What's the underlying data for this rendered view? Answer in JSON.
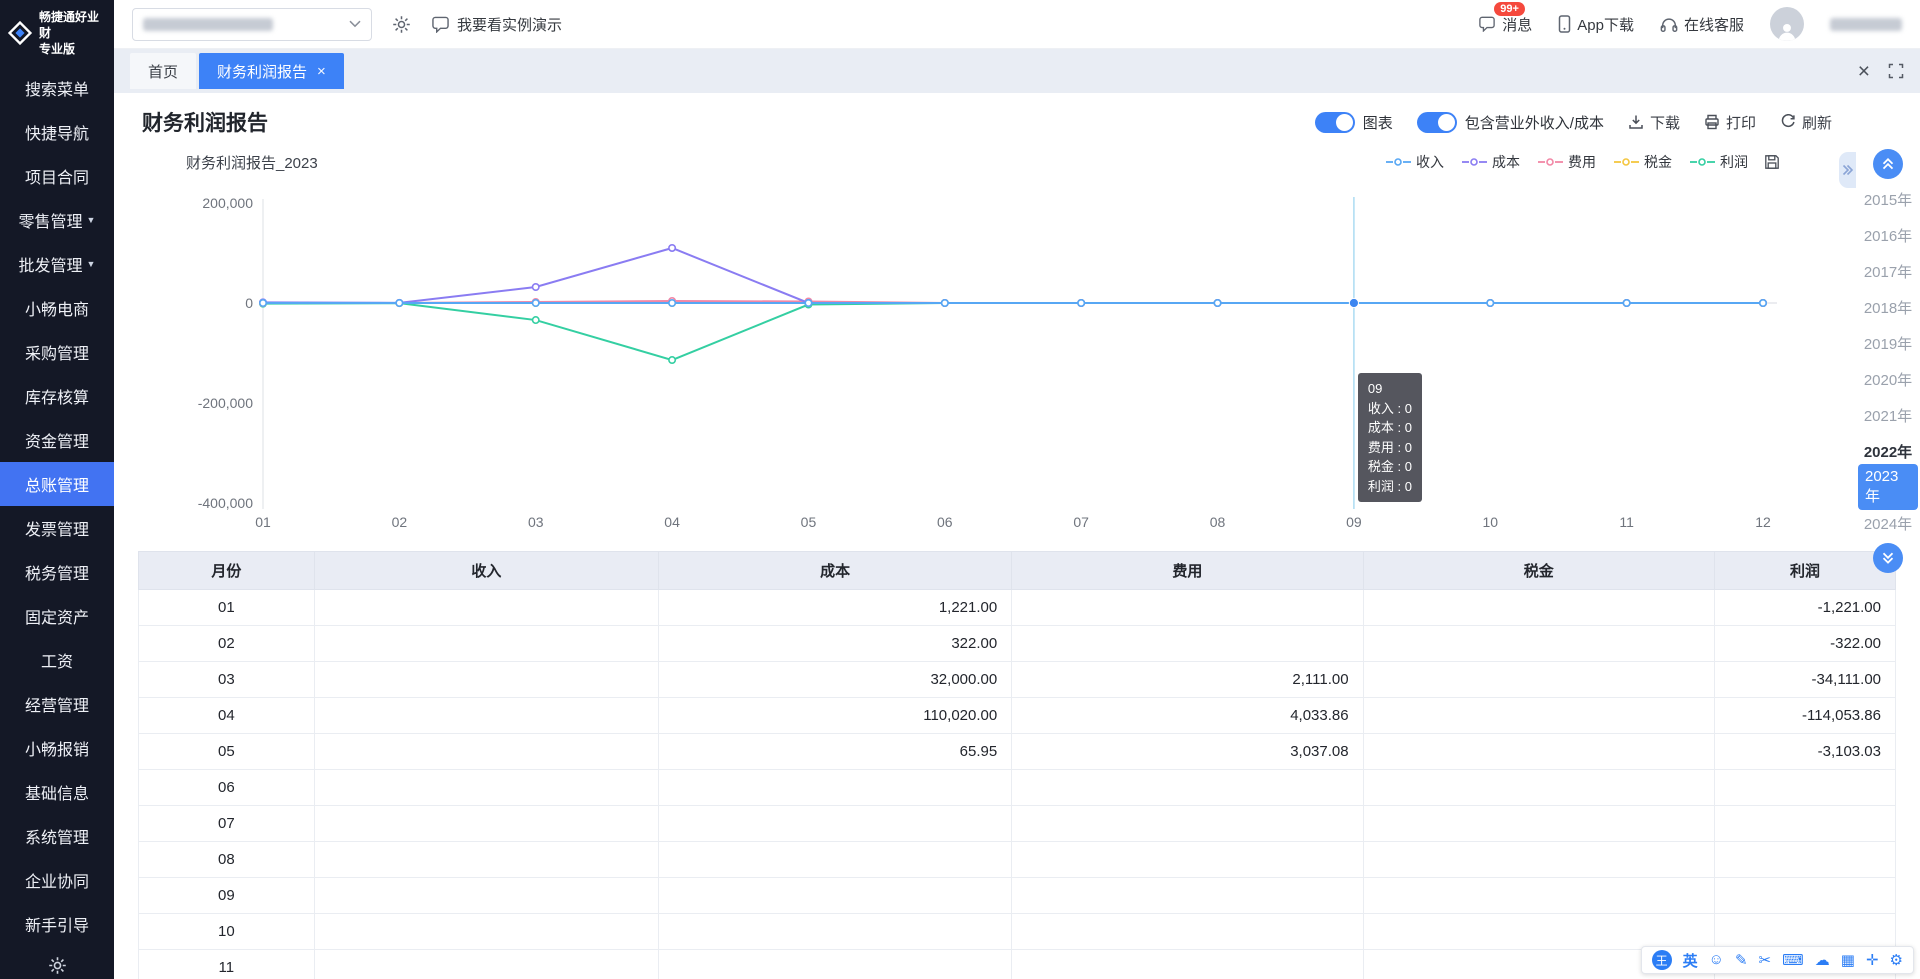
{
  "app": {
    "name": "畅捷通好业财",
    "edition": "专业版"
  },
  "topbar": {
    "demo": "我要看实例演示",
    "messages": "消息",
    "badge": "99+",
    "app_download": "App下载",
    "support": "在线客服"
  },
  "tabs": {
    "home": "首页",
    "report": "财务利润报告"
  },
  "sidebar": {
    "items": [
      {
        "id": "search-menu",
        "label": "搜索菜单"
      },
      {
        "id": "quick-nav",
        "label": "快捷导航"
      },
      {
        "id": "project-contract",
        "label": "项目合同"
      },
      {
        "id": "retail",
        "label": "零售管理",
        "arrow": true
      },
      {
        "id": "wholesale",
        "label": "批发管理",
        "arrow": true
      },
      {
        "id": "ecommerce",
        "label": "小畅电商"
      },
      {
        "id": "purchase",
        "label": "采购管理"
      },
      {
        "id": "inventory",
        "label": "库存核算"
      },
      {
        "id": "funds",
        "label": "资金管理"
      },
      {
        "id": "general-ledger",
        "label": "总账管理",
        "active": true
      },
      {
        "id": "invoice",
        "label": "发票管理"
      },
      {
        "id": "tax",
        "label": "税务管理"
      },
      {
        "id": "fixed-assets",
        "label": "固定资产"
      },
      {
        "id": "salary",
        "label": "工资"
      },
      {
        "id": "operation",
        "label": "经营管理"
      },
      {
        "id": "reimburse",
        "label": "小畅报销"
      },
      {
        "id": "base-info",
        "label": "基础信息"
      },
      {
        "id": "system",
        "label": "系统管理"
      },
      {
        "id": "collaboration",
        "label": "企业协同"
      },
      {
        "id": "guide",
        "label": "新手引导"
      }
    ]
  },
  "page": {
    "title": "财务利润报告",
    "toggle_chart": "图表",
    "toggle_include": "包含营业外收入/成本",
    "download": "下载",
    "print": "打印",
    "refresh": "刷新"
  },
  "chart_data": {
    "type": "line",
    "title": "财务利润报告_2023",
    "x": [
      "01",
      "02",
      "03",
      "04",
      "05",
      "06",
      "07",
      "08",
      "09",
      "10",
      "11",
      "12"
    ],
    "y_ticks": [
      200000,
      0,
      -200000,
      -400000
    ],
    "ylim": [
      -440000,
      220000
    ],
    "grid": false,
    "legend_position": "top-right",
    "crosshair_index": 8,
    "series": [
      {
        "name": "收入",
        "color": "#57a7f4",
        "values": [
          0,
          0,
          0,
          0,
          0,
          0,
          0,
          0,
          0,
          0,
          0,
          0
        ]
      },
      {
        "name": "成本",
        "color": "#8a7cf2",
        "values": [
          1221,
          322,
          32000,
          110020,
          65.95,
          0,
          0,
          0,
          0,
          0,
          0,
          0
        ]
      },
      {
        "name": "费用",
        "color": "#f287a6",
        "values": [
          0,
          0,
          2111,
          4033.86,
          3037.08,
          0,
          0,
          0,
          0,
          0,
          0,
          0
        ]
      },
      {
        "name": "税金",
        "color": "#f4c63f",
        "values": [
          0,
          0,
          0,
          0,
          0,
          0,
          0,
          0,
          0,
          0,
          0,
          0
        ]
      },
      {
        "name": "利润",
        "color": "#34cfa2",
        "values": [
          -1221,
          -322,
          -34111,
          -114053.86,
          -3103.03,
          0,
          0,
          0,
          0,
          0,
          0,
          0
        ]
      }
    ]
  },
  "tooltip": {
    "title": "09",
    "rows": [
      "收入 : 0",
      "成本 : 0",
      "费用 : 0",
      "税金 : 0",
      "利润 : 0"
    ]
  },
  "years": {
    "items": [
      {
        "label": "2015年"
      },
      {
        "label": "2016年"
      },
      {
        "label": "2017年"
      },
      {
        "label": "2018年"
      },
      {
        "label": "2019年"
      },
      {
        "label": "2020年"
      },
      {
        "label": "2021年"
      },
      {
        "label": "2022年",
        "emphasis": true
      },
      {
        "label": "2023年",
        "active": true
      },
      {
        "label": "2024年"
      }
    ]
  },
  "table": {
    "headers": [
      "月份",
      "收入",
      "成本",
      "费用",
      "税金",
      "利润"
    ],
    "rows": [
      [
        "01",
        "",
        "1,221.00",
        "",
        "",
        "-1,221.00"
      ],
      [
        "02",
        "",
        "322.00",
        "",
        "",
        "-322.00"
      ],
      [
        "03",
        "",
        "32,000.00",
        "2,111.00",
        "",
        "-34,111.00"
      ],
      [
        "04",
        "",
        "110,020.00",
        "4,033.86",
        "",
        "-114,053.86"
      ],
      [
        "05",
        "",
        "65.95",
        "3,037.08",
        "",
        "-3,103.03"
      ],
      [
        "06",
        "",
        "",
        "",
        "",
        ""
      ],
      [
        "07",
        "",
        "",
        "",
        "",
        ""
      ],
      [
        "08",
        "",
        "",
        "",
        "",
        ""
      ],
      [
        "09",
        "",
        "",
        "",
        "",
        ""
      ],
      [
        "10",
        "",
        "",
        "",
        "",
        ""
      ],
      [
        "11",
        "",
        "",
        "",
        "",
        ""
      ]
    ]
  },
  "ime": {
    "cn": "王",
    "en": "英",
    "icons": [
      {
        "name": "smiley-icon",
        "glyph": "☺"
      },
      {
        "name": "pen-icon",
        "glyph": "✎"
      },
      {
        "name": "scissors-icon",
        "glyph": "✂"
      },
      {
        "name": "keyboard-icon",
        "glyph": "⌨"
      },
      {
        "name": "cloud-icon",
        "glyph": "☁"
      },
      {
        "name": "grid-icon",
        "glyph": "▦"
      },
      {
        "name": "plus-icon",
        "glyph": "✛"
      },
      {
        "name": "gear-icon",
        "glyph": "⚙"
      }
    ]
  }
}
